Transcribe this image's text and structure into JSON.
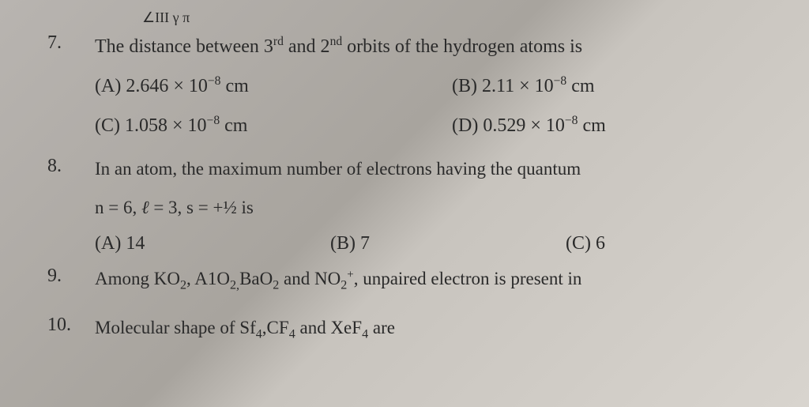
{
  "frag_top": "∠III γ π",
  "q7": {
    "num": "7.",
    "stem_pre": "The distance between 3",
    "stem_sup1": "rd",
    "stem_mid": " and 2",
    "stem_sup2": "nd",
    "stem_post": " orbits of the hydrogen atoms is",
    "optA_pre": "(A) 2.646 × 10",
    "optA_sup": "−8",
    "optA_post": " cm",
    "optB_pre": "(B) 2.11 × 10",
    "optB_sup": "−8",
    "optB_post": " cm",
    "optC_pre": "(C) 1.058 × 10",
    "optC_sup": "−8",
    "optC_post": " cm",
    "optD_pre": "(D) 0.529 × 10",
    "optD_sup": "−8",
    "optD_post": " cm"
  },
  "q8": {
    "num": "8.",
    "stem": "In an atom, the maximum number of electrons having the quantum",
    "sub_pre": "n = 6, ",
    "sub_ell": "ℓ",
    "sub_post": " = 3, s = +½ is",
    "optA": "(A) 14",
    "optB": "(B) 7",
    "optC": "(C) 6"
  },
  "q9": {
    "num": "9.",
    "pre": "Among KO",
    "s1": "2",
    "m1": ", A1O",
    "s2": "2,",
    "m2": "BaO",
    "s3": "2",
    "m3": " and NO",
    "s4": "2",
    "sup4": "+",
    "post": ", unpaired electron is present in"
  },
  "q10": {
    "num": "10.",
    "pre": "Molecular shape of Sf",
    "s1": "4",
    "m1": ",CF",
    "s2": "4",
    "m2": " and XeF",
    "s3": "4",
    "post": " are"
  }
}
